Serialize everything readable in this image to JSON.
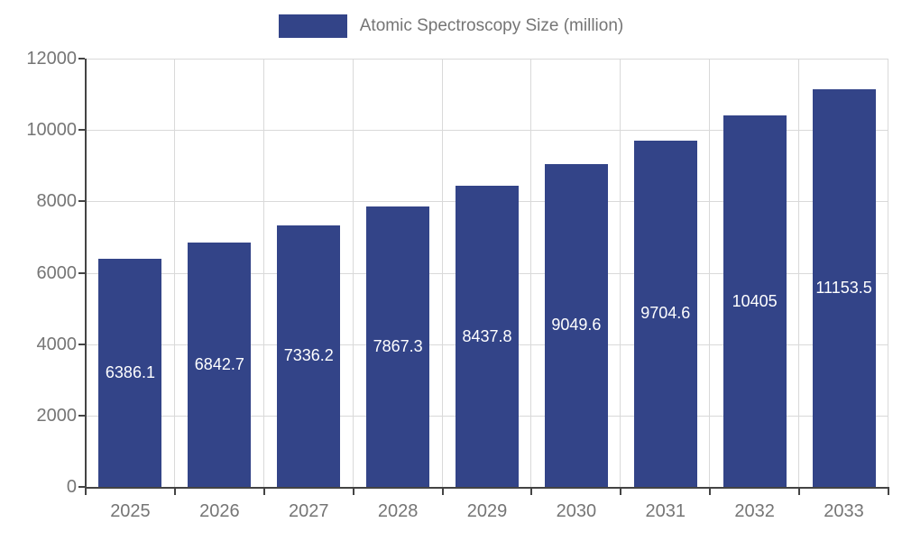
{
  "legend": {
    "label": "Atomic Spectroscopy Size (million)",
    "swatch_color": "#334488"
  },
  "chart_data": {
    "type": "bar",
    "title": "Atomic Spectroscopy Size (million)",
    "categories": [
      "2025",
      "2026",
      "2027",
      "2028",
      "2029",
      "2030",
      "2031",
      "2032",
      "2033"
    ],
    "values": [
      6386.1,
      6842.7,
      7336.2,
      7867.3,
      8437.8,
      9049.6,
      9704.6,
      10405,
      11153.5
    ],
    "value_labels": [
      "6386.1",
      "6842.7",
      "7336.2",
      "7867.3",
      "8437.8",
      "9049.6",
      "9704.6",
      "10405",
      "11153.5"
    ],
    "xlabel": "",
    "ylabel": "",
    "ylim": [
      0,
      12000
    ],
    "yticks": [
      0,
      2000,
      4000,
      6000,
      8000,
      10000,
      12000
    ],
    "grid": true,
    "legend_position": "top",
    "bar_color": "#334488",
    "value_label_color": "#ffffff",
    "axis_text_color": "#757575"
  }
}
